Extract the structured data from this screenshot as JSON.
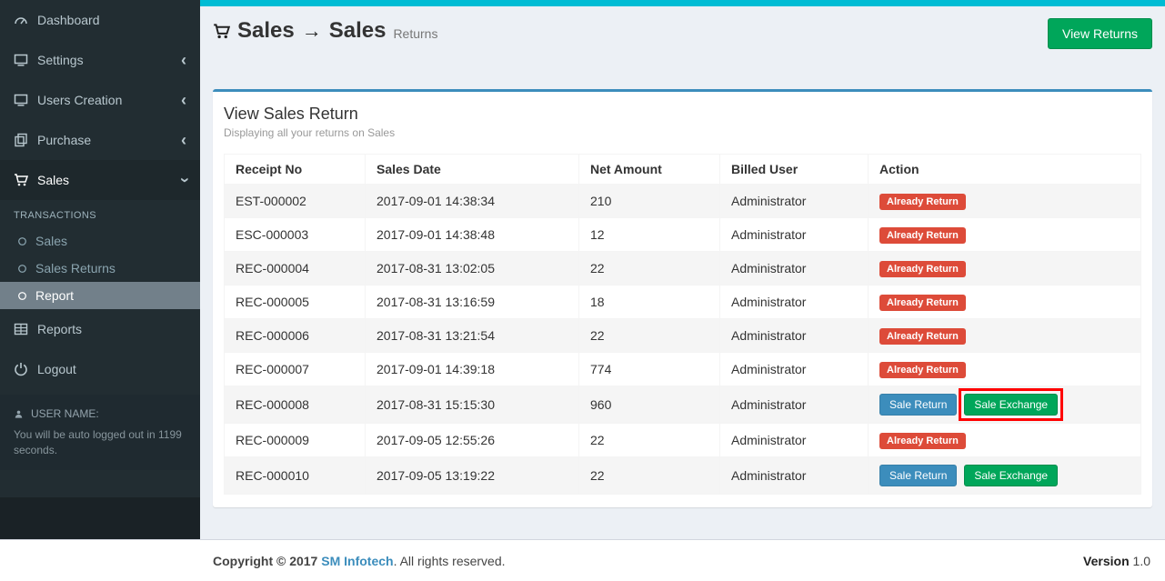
{
  "sidebar": {
    "items": [
      {
        "label": "Dashboard"
      },
      {
        "label": "Settings"
      },
      {
        "label": "Users Creation"
      },
      {
        "label": "Purchase"
      },
      {
        "label": "Sales"
      }
    ],
    "transactions_header": "TRANSACTIONS",
    "submenu": [
      {
        "label": "Sales"
      },
      {
        "label": "Sales Returns"
      },
      {
        "label": "Report"
      }
    ],
    "bottom_items": [
      {
        "label": "Reports"
      },
      {
        "label": "Logout"
      }
    ],
    "user_label": "USER NAME:",
    "auto_logout_notice": "You will be auto logged out in 1199 seconds."
  },
  "icons": {
    "chevron_left": "‹",
    "chevron_down": "‹",
    "breadcrumb_arrow": "→"
  },
  "header": {
    "crumb_primary": "Sales",
    "crumb_secondary": "Sales",
    "crumb_secondary_small": "Returns",
    "view_returns_label": "View Returns"
  },
  "card": {
    "title": "View Sales Return",
    "subtitle": "Displaying all your returns on Sales"
  },
  "table": {
    "columns": [
      "Receipt No",
      "Sales Date",
      "Net Amount",
      "Billed User",
      "Action"
    ],
    "action_labels": {
      "already_return": "Already Return",
      "sale_return": "Sale Return",
      "sale_exchange": "Sale Exchange"
    },
    "rows": [
      {
        "receipt": "EST-000002",
        "date": "2017-09-01 14:38:34",
        "amount": "210",
        "user": "Administrator",
        "actions": [
          "already_return"
        ]
      },
      {
        "receipt": "ESC-000003",
        "date": "2017-09-01 14:38:48",
        "amount": "12",
        "user": "Administrator",
        "actions": [
          "already_return"
        ]
      },
      {
        "receipt": "REC-000004",
        "date": "2017-08-31 13:02:05",
        "amount": "22",
        "user": "Administrator",
        "actions": [
          "already_return"
        ]
      },
      {
        "receipt": "REC-000005",
        "date": "2017-08-31 13:16:59",
        "amount": "18",
        "user": "Administrator",
        "actions": [
          "already_return"
        ]
      },
      {
        "receipt": "REC-000006",
        "date": "2017-08-31 13:21:54",
        "amount": "22",
        "user": "Administrator",
        "actions": [
          "already_return"
        ]
      },
      {
        "receipt": "REC-000007",
        "date": "2017-09-01 14:39:18",
        "amount": "774",
        "user": "Administrator",
        "actions": [
          "already_return"
        ]
      },
      {
        "receipt": "REC-000008",
        "date": "2017-08-31 15:15:30",
        "amount": "960",
        "user": "Administrator",
        "actions": [
          "sale_return",
          "sale_exchange"
        ],
        "highlight": true
      },
      {
        "receipt": "REC-000009",
        "date": "2017-09-05 12:55:26",
        "amount": "22",
        "user": "Administrator",
        "actions": [
          "already_return"
        ]
      },
      {
        "receipt": "REC-000010",
        "date": "2017-09-05 13:19:22",
        "amount": "22",
        "user": "Administrator",
        "actions": [
          "sale_return",
          "sale_exchange"
        ]
      }
    ]
  },
  "footer": {
    "copyright_prefix": "Copyright © 2017 ",
    "company": "SM Infotech",
    "copyright_suffix": ". All rights reserved.",
    "version_label": "Version",
    "version_value": "1.0"
  },
  "colors": {
    "topbar_accent": "#00bcd4",
    "sidebar_bg": "#222d32",
    "sidebar_active_bg": "#1e282c",
    "content_bg": "#ecf0f5",
    "card_accent": "#3c8dbc",
    "button_green": "#00a65a",
    "button_blue": "#3c8dbc",
    "badge_red": "#dd4b39",
    "annotation_red": "#ff0000"
  }
}
